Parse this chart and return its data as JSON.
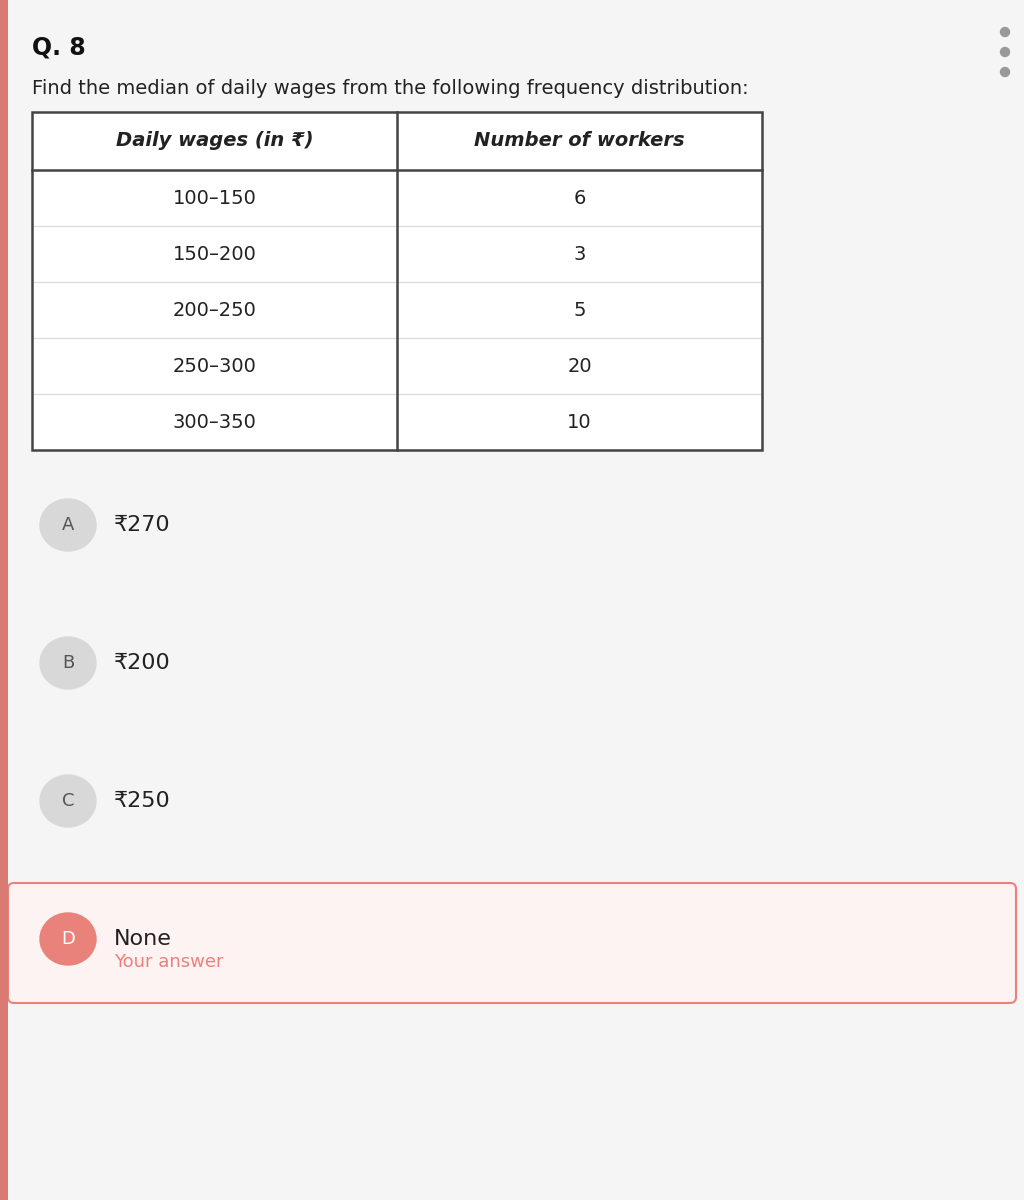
{
  "title": "Q. 8",
  "question": "Find the median of daily wages from the following frequency distribution:",
  "col1_header": "Daily wages (in ₹)",
  "col2_header": "Number of workers",
  "rows": [
    [
      "100–150",
      "6"
    ],
    [
      "150–200",
      "3"
    ],
    [
      "200–250",
      "5"
    ],
    [
      "250–300",
      "20"
    ],
    [
      "300–350",
      "10"
    ]
  ],
  "options": [
    {
      "label": "A",
      "text": "₹270",
      "selected": false
    },
    {
      "label": "B",
      "text": "₹200",
      "selected": false
    },
    {
      "label": "C",
      "text": "₹250",
      "selected": false
    },
    {
      "label": "D",
      "text": "None",
      "selected": true
    }
  ],
  "your_answer_text": "Your answer",
  "bg_color": "#ebebeb",
  "content_bg": "#f2f2f2",
  "table_bg": "#ffffff",
  "table_border_color": "#444444",
  "header_text_color": "#222222",
  "row_text_color": "#222222",
  "title_color": "#111111",
  "question_color": "#222222",
  "option_circle_default_bg": "#d8d8d8",
  "option_circle_selected_bg": "#e8827a",
  "option_circle_text_color": "#555555",
  "option_circle_selected_text_color": "#ffffff",
  "option_text_color": "#222222",
  "your_answer_color": "#e8827a",
  "selected_box_border": "#e8827a",
  "selected_box_bg": "#fdf3f2",
  "left_bar_color": "#d97b72",
  "dots_color": "#999999",
  "row_divider_color": "#dddddd"
}
